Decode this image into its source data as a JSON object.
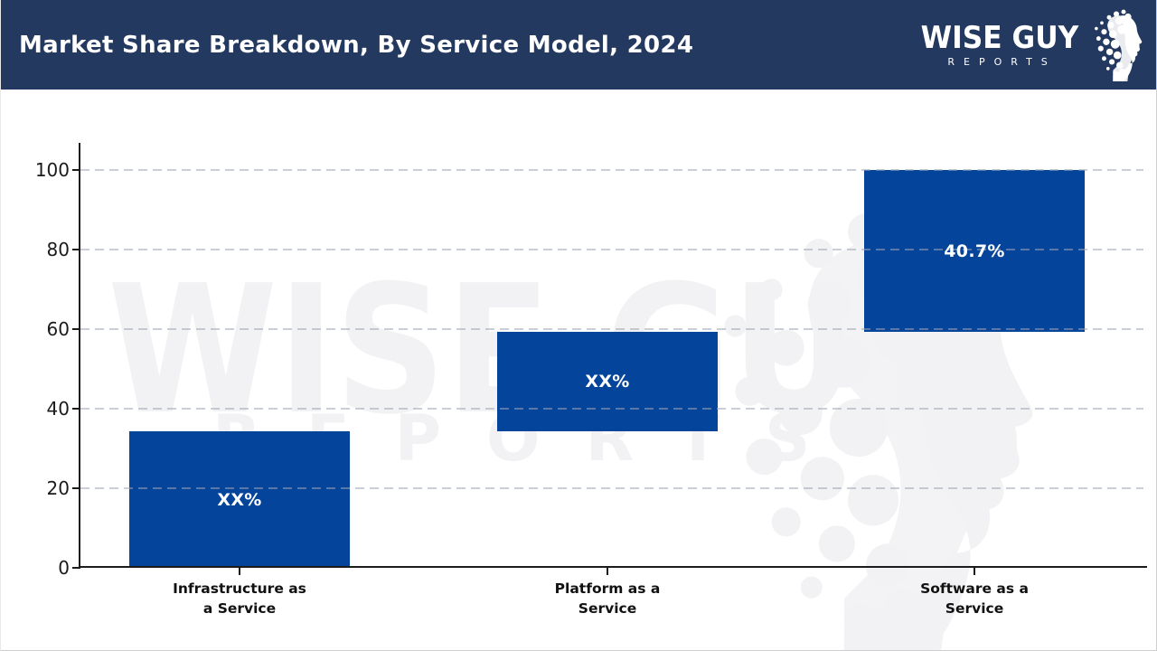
{
  "header": {
    "title": "Market Share Breakdown, By Service Model, 2024",
    "logo": {
      "wordmark": "WISE GUY",
      "subtext": "REPORTS",
      "face_icon": "wise-guy-face"
    }
  },
  "watermark": {
    "wordmark": "WISE GUY",
    "subtext": "REPORTS"
  },
  "colors": {
    "header_bg": "#23395f",
    "title_text": "#ffffff",
    "bar_blue": "#05449b",
    "axis": "#1c1c1c",
    "bar_label_text": "#ffffff",
    "watermark": "#f2f2f4"
  },
  "chart_data": {
    "type": "bar",
    "subtype": "waterfall",
    "title": "Market Share Breakdown, By Service Model, 2024",
    "categories": [
      [
        "Infrastructure as",
        "a Service"
      ],
      [
        "Platform as a",
        "Service"
      ],
      [
        "Software as a",
        "Service"
      ]
    ],
    "segments": [
      {
        "category": "Infrastructure as a Service",
        "start": 0,
        "end": 34.3,
        "label": "XX%"
      },
      {
        "category": "Platform as a Service",
        "start": 34.3,
        "end": 59.3,
        "label": "XX%"
      },
      {
        "category": "Software as a Service",
        "start": 59.3,
        "end": 100,
        "label": "40.7%"
      }
    ],
    "y_ticks": [
      0,
      20,
      40,
      60,
      80,
      100
    ],
    "ylim": [
      0,
      106
    ],
    "grid": "dashed-horizontal-over-bars",
    "legend": "none",
    "bar_color": "#05449b"
  }
}
